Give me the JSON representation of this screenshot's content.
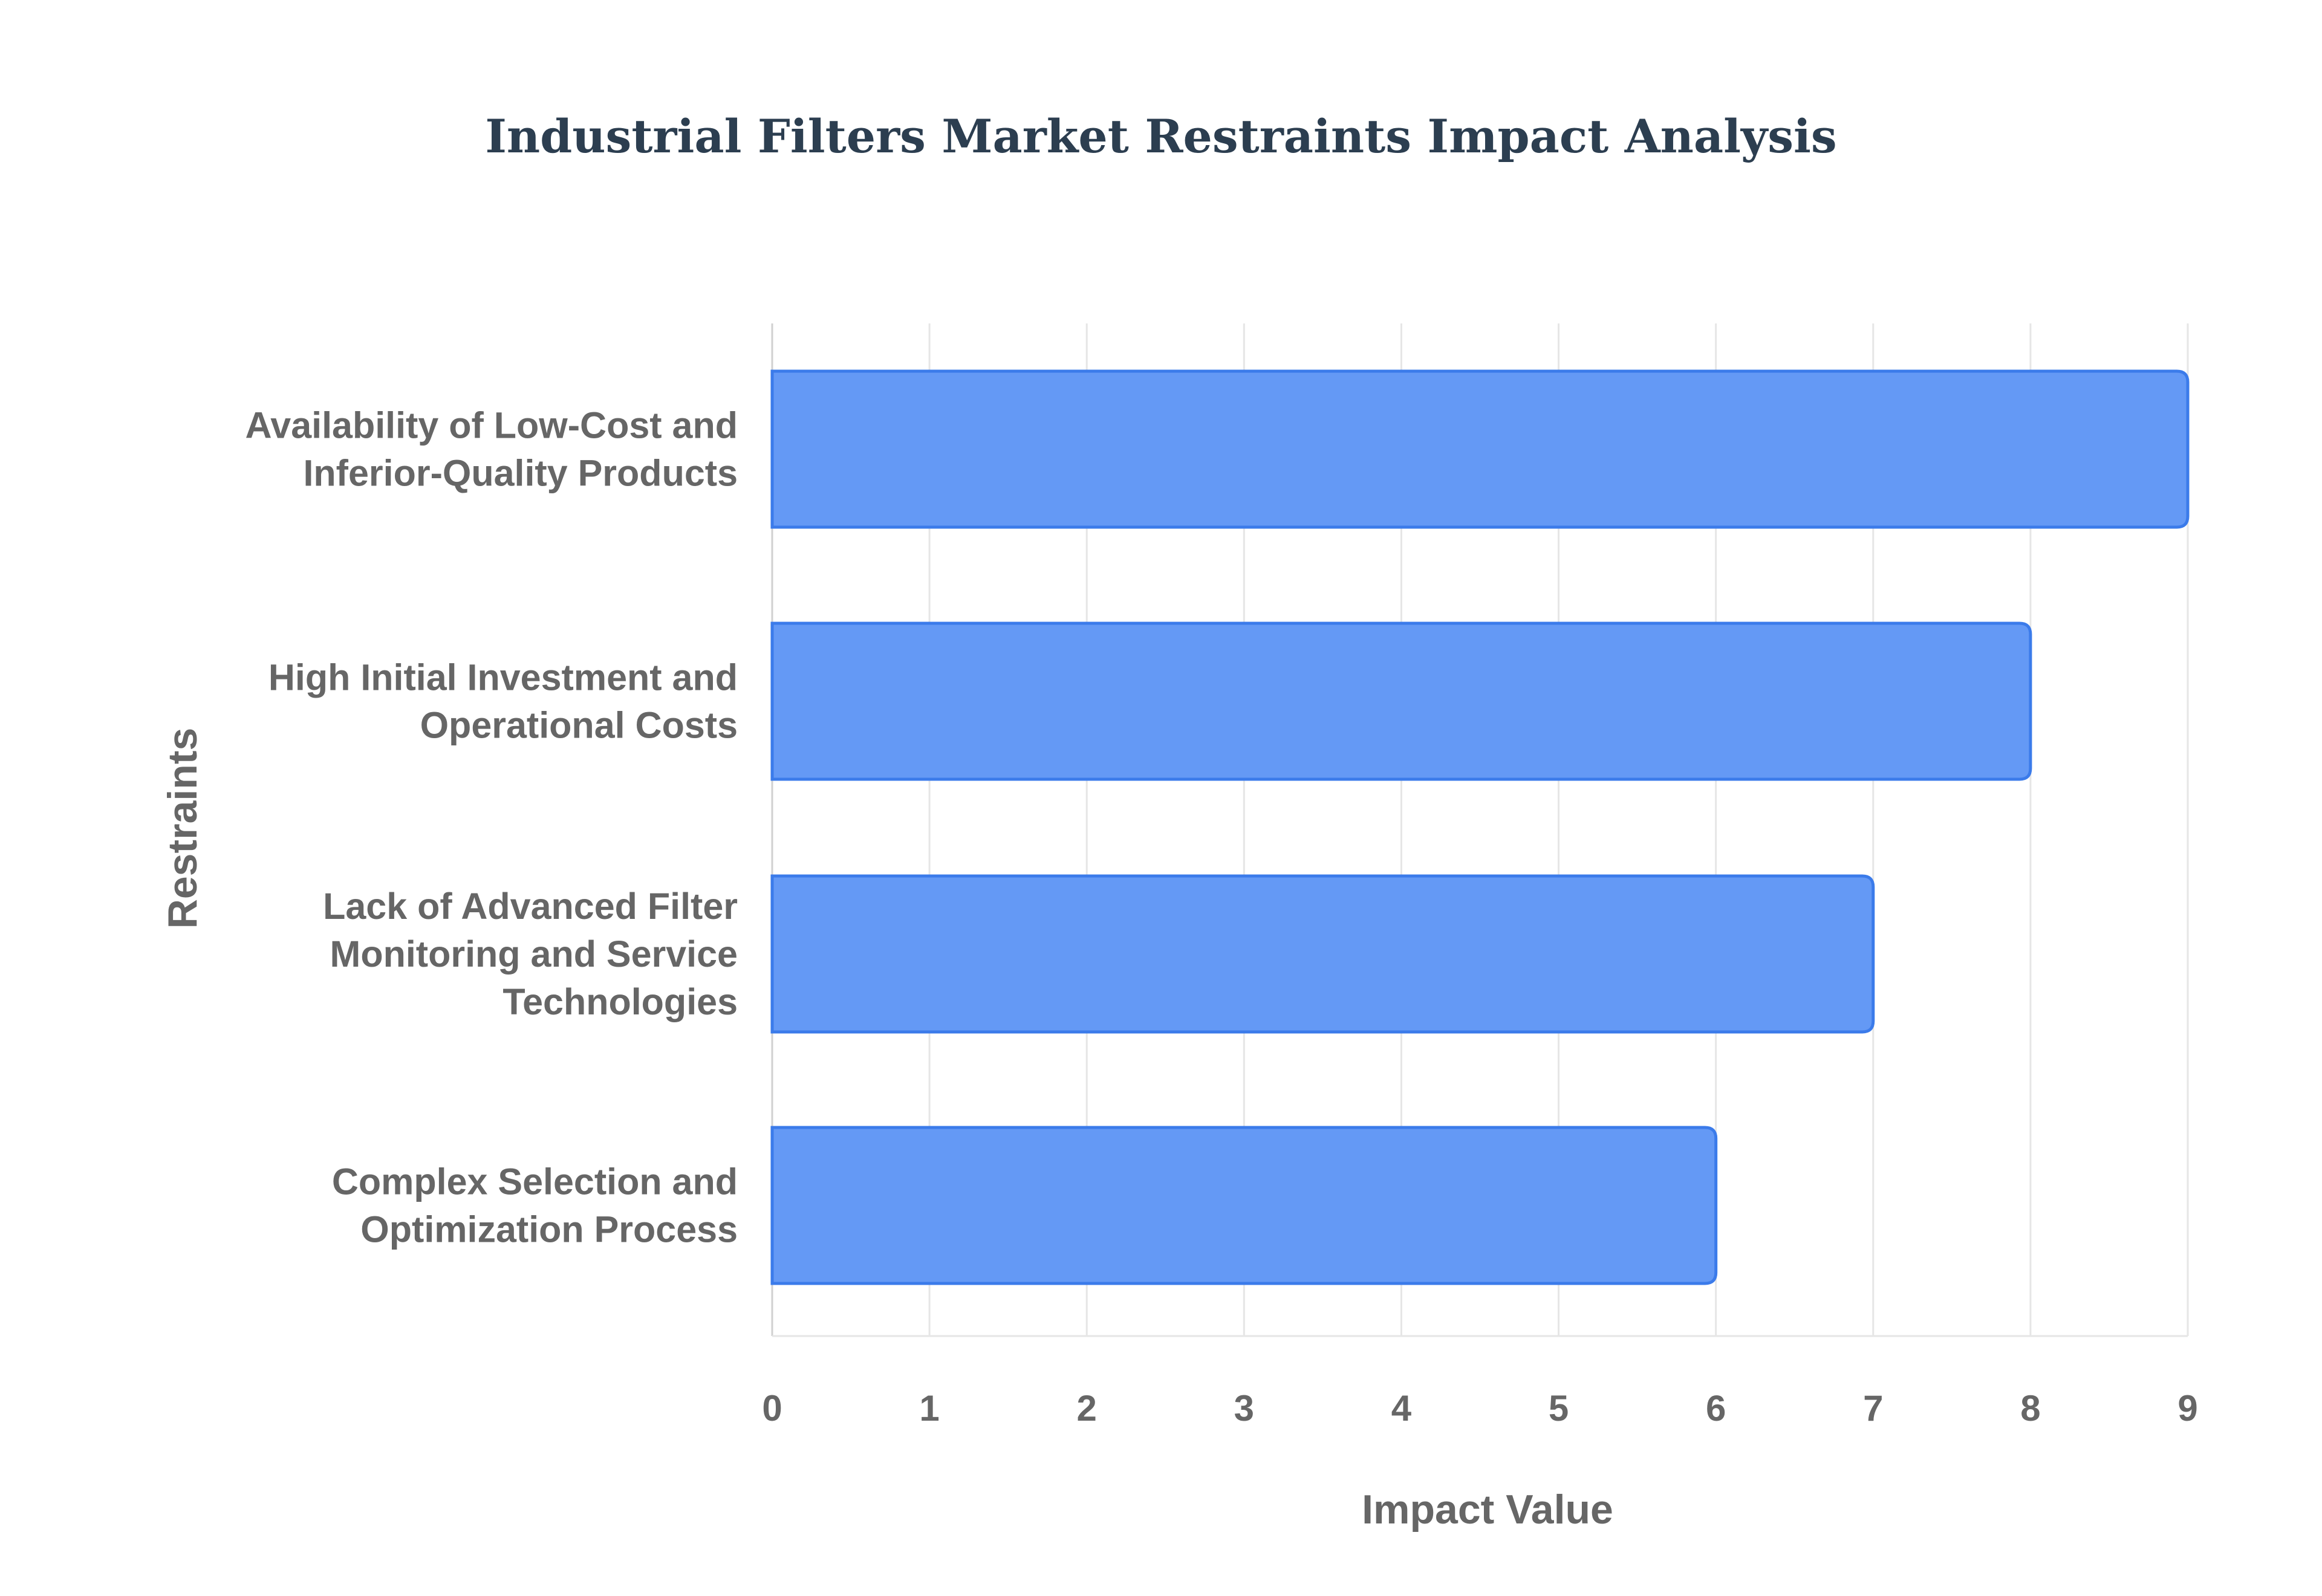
{
  "chart_data": {
    "type": "bar",
    "orientation": "horizontal",
    "title": "Industrial Filters Market Restraints Impact Analysis",
    "xlabel": "Impact Value",
    "ylabel": "Restraints",
    "categories": [
      [
        "Availability of Low-Cost and",
        "Inferior-Quality Products"
      ],
      [
        "High Initial Investment and",
        "Operational Costs"
      ],
      [
        "Lack of Advanced Filter",
        "Monitoring and Service",
        "Technologies"
      ],
      [
        "Complex Selection and",
        "Optimization Process"
      ]
    ],
    "values": [
      9,
      8,
      7,
      6
    ],
    "xlim": [
      0,
      9
    ],
    "xticks": [
      0,
      1,
      2,
      3,
      4,
      5,
      6,
      7,
      8,
      9
    ],
    "grid": true,
    "legend": "none",
    "colors": {
      "bar_fill": "#6499F5",
      "bar_stroke": "#3B7BEA",
      "title": "#2C3E50",
      "labels": "#666666",
      "grid": "#E6E6E6",
      "axis": "#D0D0D0"
    }
  }
}
